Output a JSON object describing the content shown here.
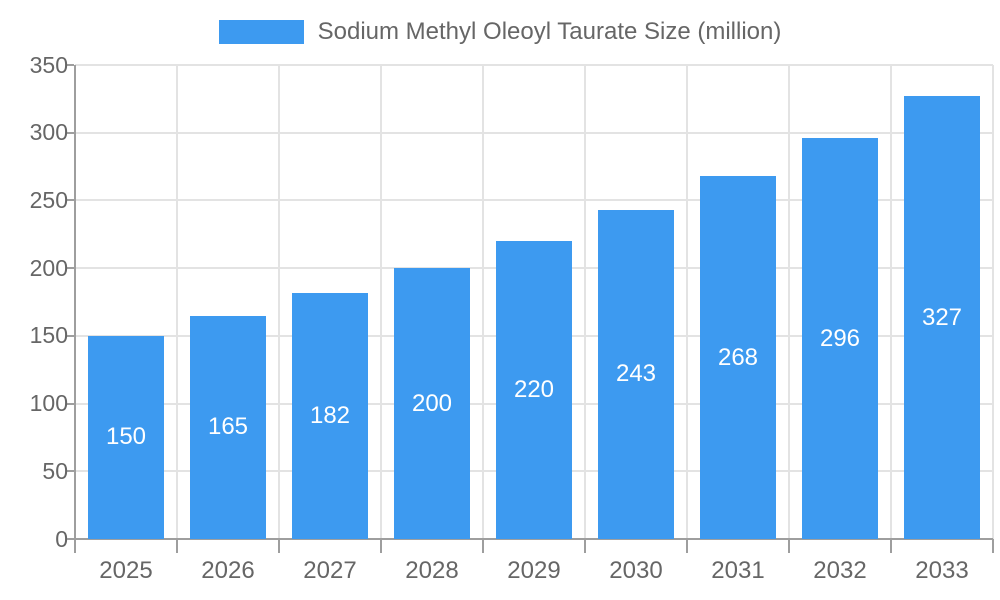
{
  "chart_data": {
    "type": "bar",
    "title": "Sodium Methyl Oleoyl Taurate Size (million)",
    "categories": [
      "2025",
      "2026",
      "2027",
      "2028",
      "2029",
      "2030",
      "2031",
      "2032",
      "2033"
    ],
    "values": [
      150,
      165,
      182,
      200,
      220,
      243,
      268,
      296,
      327
    ],
    "xlabel": "",
    "ylabel": "",
    "ylim": [
      0,
      350
    ],
    "yticks": [
      0,
      50,
      100,
      150,
      200,
      250,
      300,
      350
    ],
    "grid": true,
    "legend_position": "top-center",
    "colors": {
      "bar": "#3D9AF0",
      "value_label": "#FFFFFF",
      "tick_label": "#666666",
      "legend_label": "#666666",
      "gridline": "#E3E3E3",
      "axis": "#9E9E9E",
      "background": "#FFFFFF"
    }
  }
}
